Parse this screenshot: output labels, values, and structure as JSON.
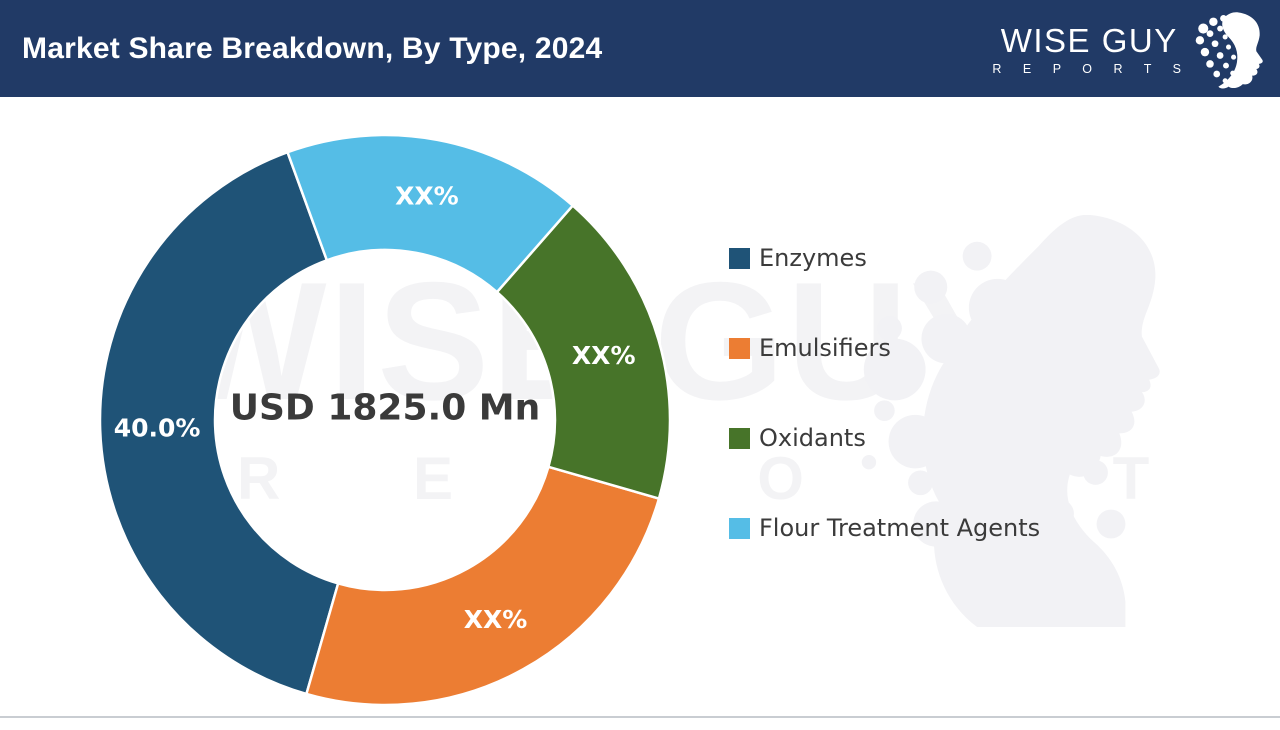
{
  "header": {
    "title": "Market Share Breakdown, By Type, 2024",
    "logo": {
      "line1": "WISE GUY",
      "line2": "R E P O R T S"
    }
  },
  "watermark": {
    "line1": "WISE GUY",
    "line2": "R E P O R T S"
  },
  "chart_data": {
    "type": "pie",
    "subtype": "donut",
    "title": "Market Share Breakdown, By Type, 2024",
    "center_label": "USD 1825.0 Mn",
    "categories": [
      "Enzymes",
      "Emulsifiers",
      "Oxidants",
      "Flour Treatment Agents"
    ],
    "values": [
      40,
      25,
      18,
      17
    ],
    "slice_labels": [
      "40.0%",
      "XX%",
      "XX%",
      "XX%"
    ],
    "colors": [
      "#1F5377",
      "#EC7D33",
      "#477429",
      "#55BDE6"
    ],
    "start_angle_deg": 110,
    "direction": "counterclockwise",
    "outer_radius": 285,
    "inner_radius": 170,
    "label_radius": 228,
    "legend_position": "right",
    "header_color": "#213A66",
    "center_label_color": "#3A3A3A",
    "slice_label_color": "#ffffff"
  }
}
